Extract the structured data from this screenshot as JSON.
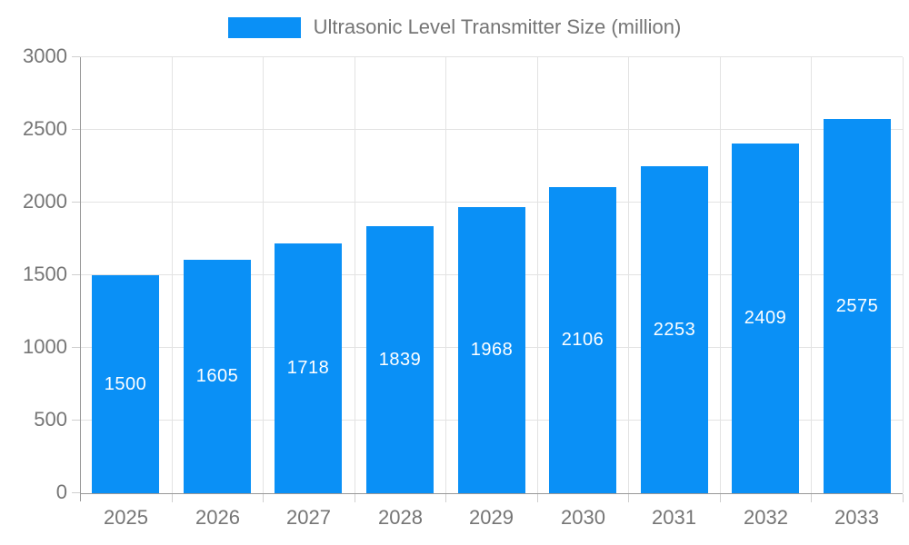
{
  "legend": {
    "label": "Ultrasonic Level Transmitter Size (million)"
  },
  "chart_data": {
    "type": "bar",
    "title": "Ultrasonic Level Transmitter Size (million)",
    "categories": [
      "2025",
      "2026",
      "2027",
      "2028",
      "2029",
      "2030",
      "2031",
      "2032",
      "2033"
    ],
    "values": [
      1500,
      1605,
      1718,
      1839,
      1968,
      2106,
      2253,
      2409,
      2575
    ],
    "value_labels": [
      "1500",
      "1605",
      "1718",
      "1839",
      "1968",
      "2106",
      "2253",
      "2409",
      "2575"
    ],
    "series": [
      {
        "name": "Ultrasonic Level Transmitter Size (million)",
        "values": [
          1500,
          1605,
          1718,
          1839,
          1968,
          2106,
          2253,
          2409,
          2575
        ]
      }
    ],
    "xlabel": "",
    "ylabel": "",
    "ylim": [
      0,
      3000
    ],
    "yticks": [
      0,
      500,
      1000,
      1500,
      2000,
      2500,
      3000
    ],
    "grid": true,
    "legend_position": "top-center",
    "value_label_position": "inside-center",
    "colors": {
      "bar": "#0a90f6",
      "bar_value_text": "#ffffff",
      "axis_text": "#757575",
      "axis_line": "#989898",
      "gridline": "#e3e3e3",
      "tick": "#cfcfcf",
      "background": "#ffffff"
    }
  }
}
